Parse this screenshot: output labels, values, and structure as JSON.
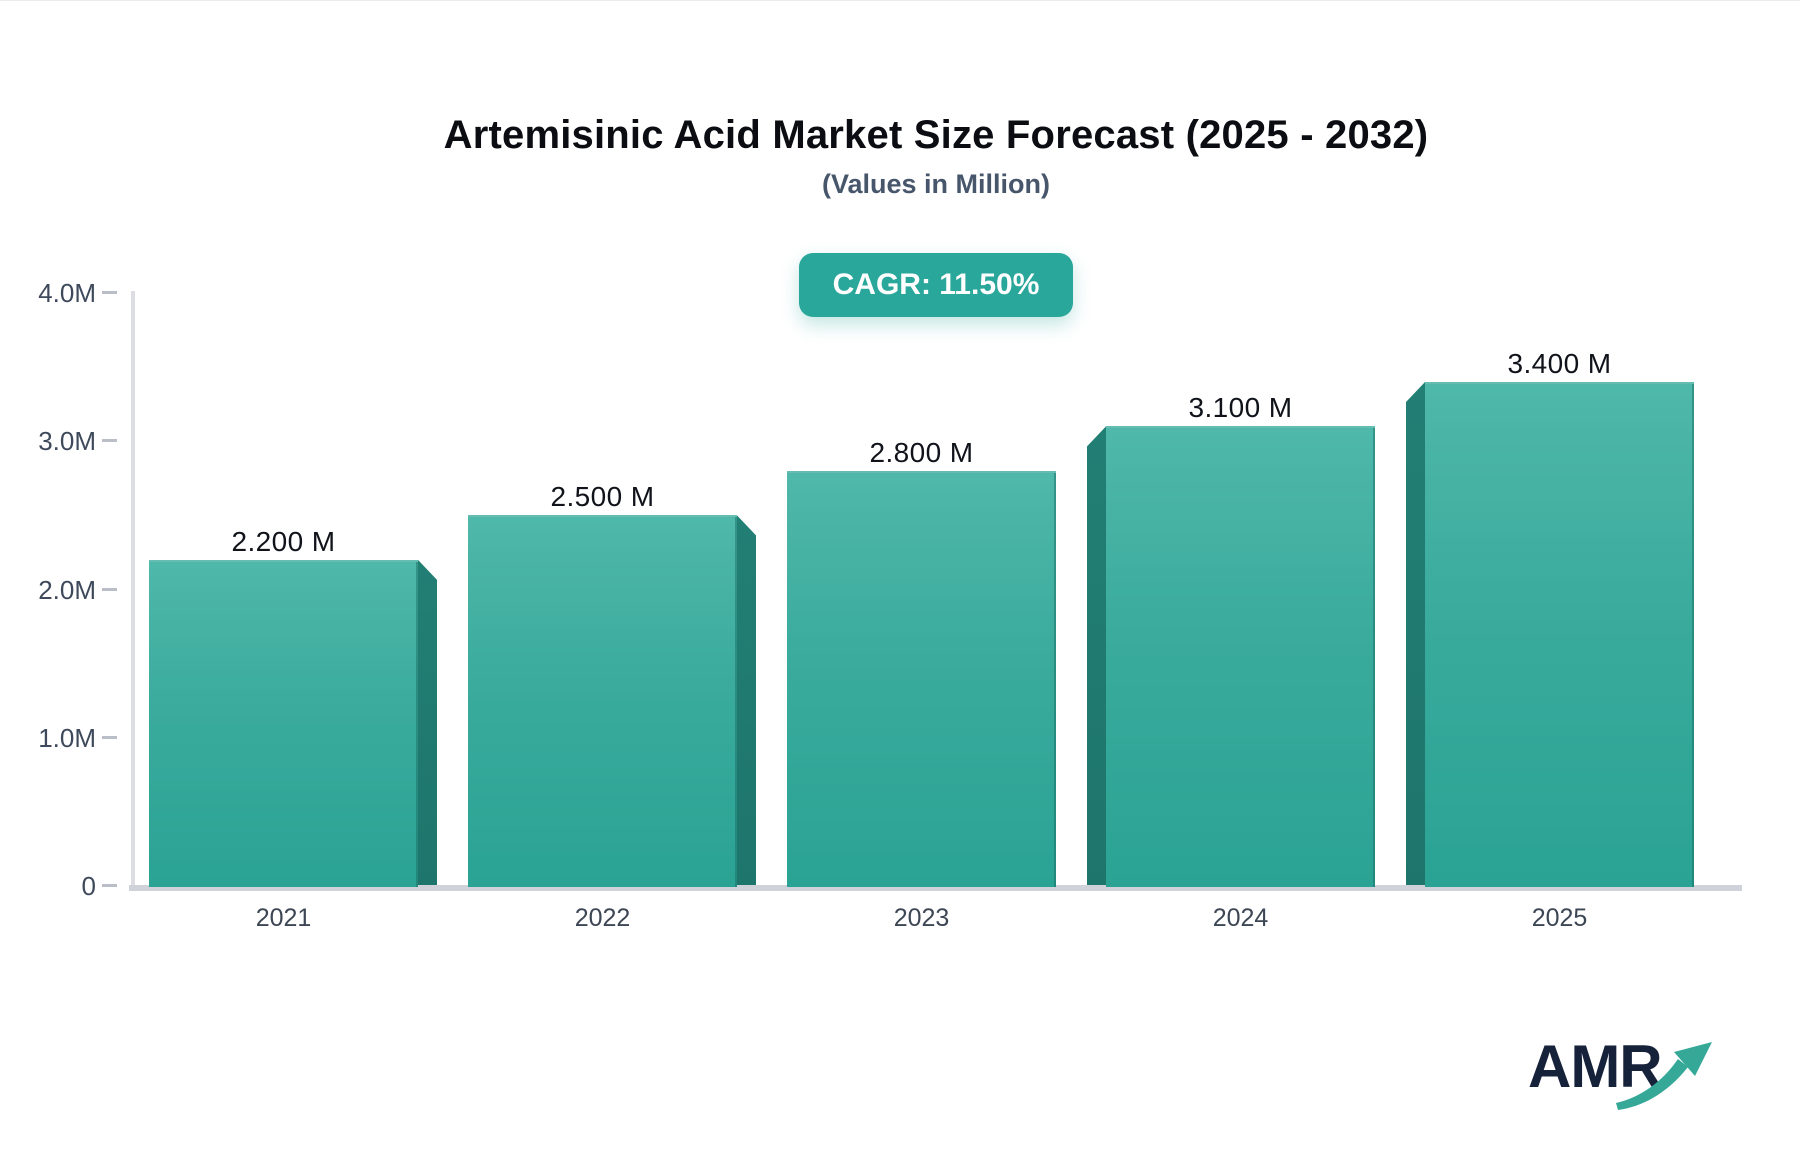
{
  "header": {
    "title": "Artemisinic Acid Market Size Forecast (2025 - 2032)",
    "subtitle": "(Values in Million)",
    "badge": "CAGR: 11.50%"
  },
  "chart_data": {
    "type": "bar",
    "title": "Artemisinic Acid Market Size Forecast (2025 - 2032)",
    "subtitle": "(Values in Million)",
    "annotation": "CAGR: 11.50%",
    "categories": [
      "2021",
      "2022",
      "2023",
      "2024",
      "2025"
    ],
    "values": [
      2.2,
      2.5,
      2.8,
      3.1,
      3.4
    ],
    "value_labels": [
      "2.200 M",
      "2.500 M",
      "2.800 M",
      "3.100 M",
      "3.400 M"
    ],
    "xlabel": "",
    "ylabel": "",
    "ylim": [
      0,
      4
    ],
    "yticks": [
      {
        "value": 4,
        "label": "4.0M"
      },
      {
        "value": 3,
        "label": "3.0M"
      },
      {
        "value": 2,
        "label": "2.0M"
      },
      {
        "value": 1,
        "label": "1.0M"
      },
      {
        "value": 0,
        "label": "0"
      }
    ],
    "grid": false,
    "legend": "none",
    "shadow_sides": [
      "right",
      "right",
      "none",
      "left",
      "left"
    ],
    "colors": {
      "bar_top": "#4fb8aa",
      "bar_bottom": "#2aa394",
      "bar_side_dark": "#1f7c71",
      "badge_background": "#2aa79b",
      "axis_line": "#cfd2d9",
      "tick": "#b9bec7",
      "title_text": "#0b0d12",
      "subtitle_text": "#47566b",
      "axis_text": "#3e4a5b",
      "value_text": "#10131a"
    }
  },
  "logo": {
    "text": "AMR",
    "icon": "growth-arrow-icon",
    "text_color": "#16213a",
    "arrow_color": "#35a898"
  }
}
